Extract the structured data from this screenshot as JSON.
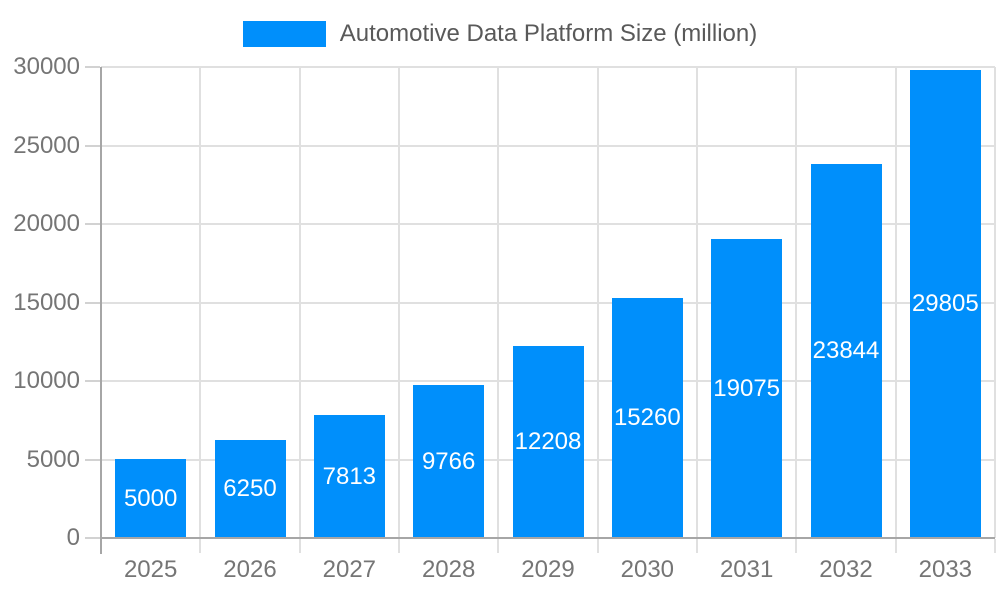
{
  "chart_data": {
    "type": "bar",
    "title": "Automotive Data Platform Size (million)",
    "legend_label": "Automotive Data Platform Size (million)",
    "legend_position": "top",
    "categories": [
      "2025",
      "2026",
      "2027",
      "2028",
      "2029",
      "2030",
      "2031",
      "2032",
      "2033"
    ],
    "series": [
      {
        "name": "Automotive Data Platform Size (million)",
        "values": [
          5000,
          6250,
          7813,
          9766,
          12208,
          15260,
          19075,
          23844,
          29805
        ]
      }
    ],
    "bar_value_labels": [
      "5000",
      "6250",
      "7813",
      "9766",
      "12208",
      "15260",
      "19075",
      "23844",
      "29805"
    ],
    "xlabel": "",
    "ylabel": "",
    "ylim": [
      0,
      30000
    ],
    "y_ticks": [
      0,
      5000,
      10000,
      15000,
      20000,
      25000,
      30000
    ],
    "grid": true,
    "colors": {
      "bar": "#008ffb",
      "grid_line": "#e0e0e0",
      "axis_line": "#a6a6a6",
      "tick_label_text": "#757575",
      "legend_text": "#595959",
      "value_label_text": "#ffffff",
      "background": "#ffffff"
    }
  }
}
